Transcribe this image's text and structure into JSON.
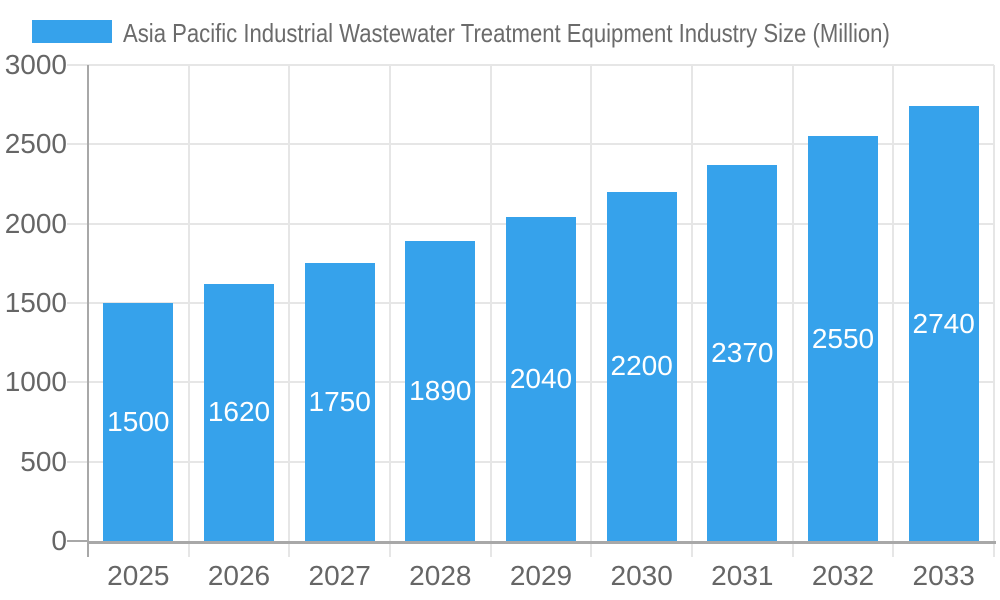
{
  "legend": {
    "swatch_color": "#36a2eb"
  },
  "chart_data": {
    "type": "bar",
    "title": "Asia Pacific Industrial Wastewater Treatment Equipment Industry Size (Million)",
    "categories": [
      "2025",
      "2026",
      "2027",
      "2028",
      "2029",
      "2030",
      "2031",
      "2032",
      "2033"
    ],
    "values": [
      1500,
      1620,
      1750,
      1890,
      2040,
      2200,
      2370,
      2550,
      2740
    ],
    "bar_labels": [
      "1500",
      "1620",
      "1750",
      "1890",
      "2040",
      "2200",
      "2370",
      "2550",
      "2740"
    ],
    "xlabel": "",
    "ylabel": "",
    "ylim": [
      0,
      3000
    ],
    "y_ticks": [
      0,
      500,
      1000,
      1500,
      2000,
      2500,
      3000
    ],
    "y_tick_labels": [
      "0",
      "500",
      "1000",
      "1500",
      "2000",
      "2500",
      "3000"
    ],
    "grid": true,
    "legend_position": "top",
    "colors": {
      "bar": "#36a2eb",
      "bar_value_text": "#ffffff",
      "gridline": "#e6e6e6",
      "axis_line": "#a8a8a8",
      "tick_text": "#666666",
      "title_text": "#6b6b6b"
    }
  }
}
